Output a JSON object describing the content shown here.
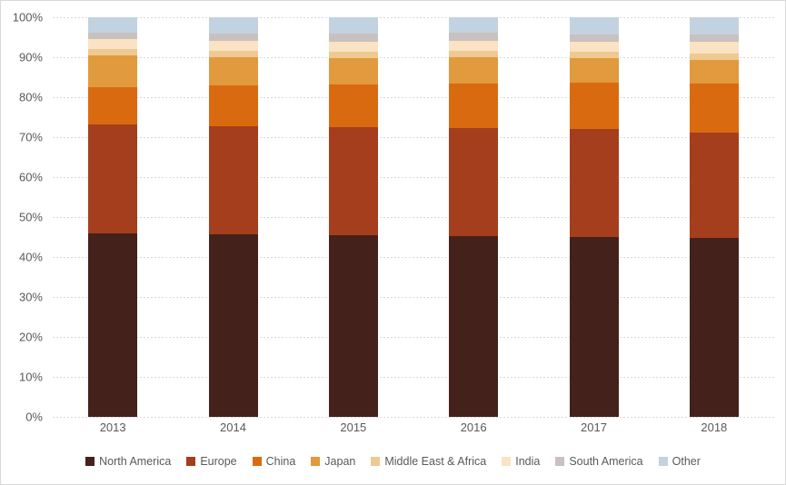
{
  "chart_data": {
    "type": "bar",
    "subtype": "stacked-100-percent",
    "title": "",
    "xlabel": "",
    "ylabel": "",
    "ylim": [
      0,
      100
    ],
    "grid": true,
    "legend_position": "bottom",
    "y_ticks": [
      "0%",
      "10%",
      "20%",
      "30%",
      "40%",
      "50%",
      "60%",
      "70%",
      "80%",
      "90%",
      "100%"
    ],
    "y_tick_values": [
      0,
      10,
      20,
      30,
      40,
      50,
      60,
      70,
      80,
      90,
      100
    ],
    "categories": [
      "2013",
      "2014",
      "2015",
      "2016",
      "2017",
      "2018"
    ],
    "series": [
      {
        "name": "North America",
        "color": "#44211A",
        "values": [
          46.0,
          45.7,
          45.5,
          45.2,
          45.0,
          44.8
        ]
      },
      {
        "name": "Europe",
        "color": "#A43E1C",
        "values": [
          27.2,
          27.0,
          27.0,
          27.1,
          27.1,
          26.4
        ]
      },
      {
        "name": "China",
        "color": "#DA6A10",
        "values": [
          9.4,
          10.3,
          10.8,
          11.2,
          11.6,
          12.3
        ]
      },
      {
        "name": "Japan",
        "color": "#E19A3E",
        "values": [
          7.8,
          6.9,
          6.4,
          6.4,
          6.0,
          5.9
        ]
      },
      {
        "name": "Middle East & Africa",
        "color": "#EEC992",
        "values": [
          1.7,
          1.6,
          1.6,
          1.6,
          1.6,
          1.6
        ]
      },
      {
        "name": "India",
        "color": "#FAE2C3",
        "values": [
          2.5,
          2.5,
          2.5,
          2.5,
          2.5,
          2.8
        ]
      },
      {
        "name": "South America",
        "color": "#C9C1BF",
        "values": [
          1.6,
          2.0,
          2.2,
          2.2,
          2.0,
          1.8
        ]
      },
      {
        "name": "Other",
        "color": "#C3D2E0",
        "values": [
          3.8,
          4.0,
          4.0,
          3.8,
          4.2,
          4.4
        ]
      }
    ],
    "colors": {
      "axis_text": "#595959",
      "gridline": "#D9D9D9",
      "frame_border": "#D9D9D9",
      "background": "#FFFFFF"
    }
  }
}
